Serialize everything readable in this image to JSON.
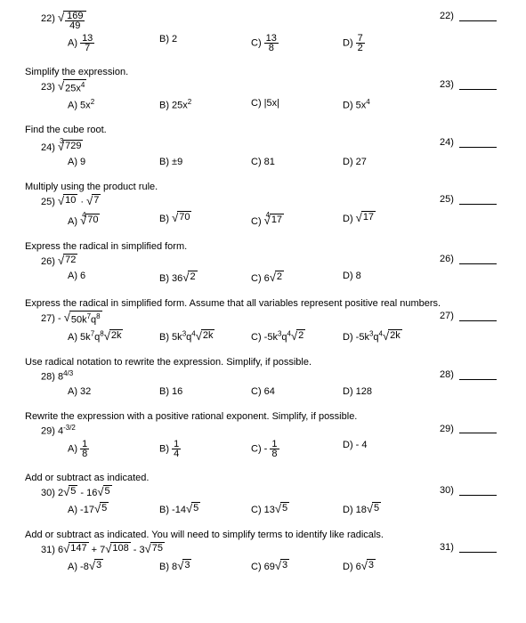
{
  "problems": [
    {
      "num": "22)",
      "expr": "<span class='sqrt'><span class='sqrt-sym'>√</span><span class='sqrt-body'><span class='frac'><span class='num'>169</span><span class='den'>49</span></span></span></span>",
      "choices": {
        "A": "<span class='frac'><span class='num'>13</span><span class='den'>7</span></span>",
        "B": "2",
        "C": "<span class='frac'><span class='num'>13</span><span class='den'>8</span></span>",
        "D": "<span class='frac'><span class='num'>7</span><span class='den'>2</span></span>"
      },
      "ans": "22)"
    },
    {
      "section": "Simplify the expression.",
      "num": "23)",
      "expr": "<span class='sqrt'><span class='sqrt-sym'>√</span><span class='sqrt-body'>25x<sup>4</sup></span></span>",
      "choices": {
        "A": "5x<sup>2</sup>",
        "B": "25x<sup>2</sup>",
        "C": "|5x|",
        "D": "5x<sup>4</sup>"
      },
      "ans": "23)"
    },
    {
      "section": "Find the cube root.",
      "num": "24)",
      "expr": "<span style='display:inline-block'><span class='root-idx'>3</span><span class='sqrt'><span class='sqrt-sym'>√</span><span class='sqrt-body'>729</span></span></span>",
      "choices": {
        "A": "9",
        "B": "±9",
        "C": "81",
        "D": "27"
      },
      "ans": "24)"
    },
    {
      "section": "Multiply using the product rule.",
      "num": "25)",
      "expr": "<span class='sqrt'><span class='sqrt-sym'>√</span><span class='sqrt-body'>10</span></span> · <span class='sqrt'><span class='sqrt-sym'>√</span><span class='sqrt-body'>7</span></span>",
      "choices": {
        "A": "<span style='display:inline-block'><span class='root-idx'>4</span><span class='sqrt'><span class='sqrt-sym'>√</span><span class='sqrt-body'>70</span></span></span>",
        "B": "<span class='sqrt'><span class='sqrt-sym'>√</span><span class='sqrt-body'>70</span></span>",
        "C": "<span style='display:inline-block'><span class='root-idx'>4</span><span class='sqrt'><span class='sqrt-sym'>√</span><span class='sqrt-body'>17</span></span></span>",
        "D": "<span class='sqrt'><span class='sqrt-sym'>√</span><span class='sqrt-body'>17</span></span>"
      },
      "ans": "25)"
    },
    {
      "section": "Express the radical in simplified form.",
      "num": "26)",
      "expr": "<span class='sqrt'><span class='sqrt-sym'>√</span><span class='sqrt-body'>72</span></span>",
      "choices": {
        "A": "6",
        "B": "36<span class='sqrt'><span class='sqrt-sym'>√</span><span class='sqrt-body'>2</span></span>",
        "C": "6<span class='sqrt'><span class='sqrt-sym'>√</span><span class='sqrt-body'>2</span></span>",
        "D": "8"
      },
      "ans": "26)"
    },
    {
      "section": "Express the radical in simplified form. Assume that all variables represent positive real numbers.",
      "num": "27)",
      "expr": "- <span class='sqrt'><span class='sqrt-sym'>√</span><span class='sqrt-body'>50k<sup>7</sup>q<sup>8</sup></span></span>",
      "choices": {
        "A": "5k<sup>7</sup>q<sup>8</sup><span class='sqrt'><span class='sqrt-sym'>√</span><span class='sqrt-body'>2k</span></span>",
        "B": "5k<sup>3</sup>q<sup>4</sup><span class='sqrt'><span class='sqrt-sym'>√</span><span class='sqrt-body'>2k</span></span>",
        "C": "-5k<sup>3</sup>q<sup>4</sup><span class='sqrt'><span class='sqrt-sym'>√</span><span class='sqrt-body'>2</span></span>",
        "D": "-5k<sup>3</sup>q<sup>4</sup><span class='sqrt'><span class='sqrt-sym'>√</span><span class='sqrt-body'>2k</span></span>"
      },
      "ans": "27)"
    },
    {
      "section": "Use radical notation to rewrite the expression. Simplify, if possible.",
      "num": "28)",
      "expr": "8<sup>4/3</sup>",
      "choices": {
        "A": "32",
        "B": "16",
        "C": "64",
        "D": "128"
      },
      "ans": "28)"
    },
    {
      "section": "Rewrite the expression with a positive rational exponent. Simplify, if possible.",
      "num": "29)",
      "expr": "4<sup>-3/2</sup>",
      "choices": {
        "A": "<span class='frac'><span class='num'>1</span><span class='den'>8</span></span>",
        "B": "<span class='frac'><span class='num'>1</span><span class='den'>4</span></span>",
        "C": "- <span class='frac'><span class='num'>1</span><span class='den'>8</span></span>",
        "D": "- 4"
      },
      "ans": "29)"
    },
    {
      "section": "Add or subtract as indicated.",
      "num": "30)",
      "expr": "2<span class='sqrt'><span class='sqrt-sym'>√</span><span class='sqrt-body'>5</span></span> - 16<span class='sqrt'><span class='sqrt-sym'>√</span><span class='sqrt-body'>5</span></span>",
      "choices": {
        "A": "-17<span class='sqrt'><span class='sqrt-sym'>√</span><span class='sqrt-body'>5</span></span>",
        "B": "-14<span class='sqrt'><span class='sqrt-sym'>√</span><span class='sqrt-body'>5</span></span>",
        "C": "13<span class='sqrt'><span class='sqrt-sym'>√</span><span class='sqrt-body'>5</span></span>",
        "D": "18<span class='sqrt'><span class='sqrt-sym'>√</span><span class='sqrt-body'>5</span></span>"
      },
      "ans": "30)"
    },
    {
      "section": "Add or subtract as indicated. You will need to simplify terms to identify like radicals.",
      "num": "31)",
      "expr": "6<span class='sqrt'><span class='sqrt-sym'>√</span><span class='sqrt-body'>147</span></span> + 7<span class='sqrt'><span class='sqrt-sym'>√</span><span class='sqrt-body'>108</span></span> - 3<span class='sqrt'><span class='sqrt-sym'>√</span><span class='sqrt-body'>75</span></span>",
      "choices": {
        "A": "-8<span class='sqrt'><span class='sqrt-sym'>√</span><span class='sqrt-body'>3</span></span>",
        "B": "8<span class='sqrt'><span class='sqrt-sym'>√</span><span class='sqrt-body'>3</span></span>",
        "C": "69<span class='sqrt'><span class='sqrt-sym'>√</span><span class='sqrt-body'>3</span></span>",
        "D": "6<span class='sqrt'><span class='sqrt-sym'>√</span><span class='sqrt-body'>3</span></span>"
      },
      "ans": "31)"
    }
  ]
}
